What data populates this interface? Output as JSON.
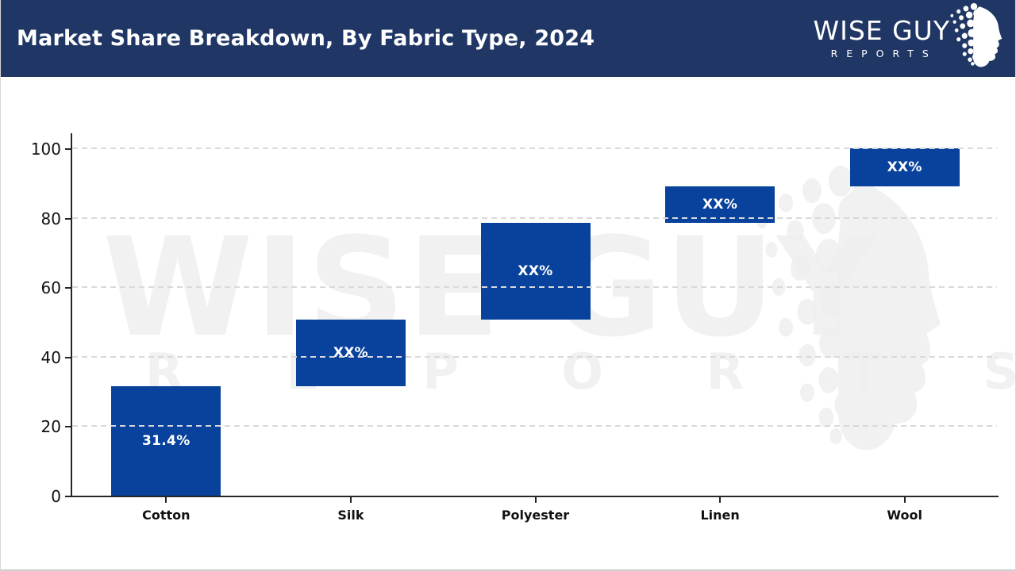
{
  "header": {
    "title": "Market Share Breakdown, By Fabric Type, 2024",
    "bg_color": "#203766",
    "logo": {
      "line1": "WISE GUY",
      "line2": "REPORTS"
    }
  },
  "watermark": {
    "line1": "WISE GUY",
    "line2": "REPORTS",
    "line2_spaced": "R E P O R T S"
  },
  "chart_data": {
    "type": "bar",
    "subtype": "waterfall",
    "title": "Market Share Breakdown, By Fabric Type, 2024",
    "xlabel": "",
    "ylabel": "",
    "categories": [
      "Cotton",
      "Silk",
      "Polyester",
      "Linen",
      "Wool"
    ],
    "segments": [
      {
        "category": "Cotton",
        "start": 0,
        "end": 31.4,
        "label": "31.4%"
      },
      {
        "category": "Silk",
        "start": 31.4,
        "end": 50.6,
        "label": "XX%"
      },
      {
        "category": "Polyester",
        "start": 50.6,
        "end": 78.5,
        "label": "XX%"
      },
      {
        "category": "Linen",
        "start": 78.5,
        "end": 89.0,
        "label": "XX%"
      },
      {
        "category": "Wool",
        "start": 89.0,
        "end": 100.0,
        "label": "XX%"
      }
    ],
    "yticks": [
      0,
      20,
      40,
      60,
      80,
      100
    ],
    "ylim": [
      0,
      104
    ],
    "grid": "horizontal-dashed",
    "gridline_color": "#d9d9d9",
    "bar_color": "#08429c",
    "bar_label_color": "#ffffff",
    "legend": null
  }
}
